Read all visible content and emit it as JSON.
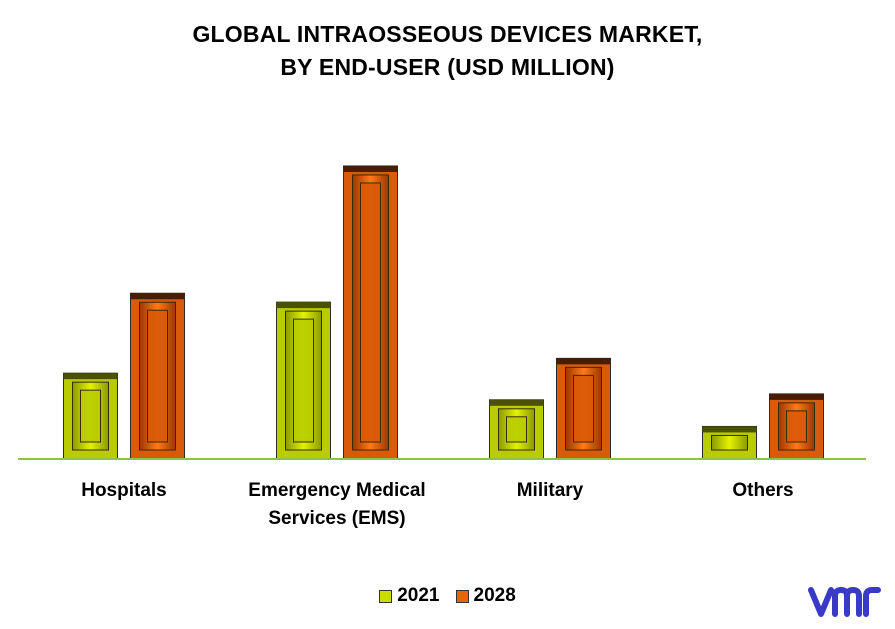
{
  "chart_data": {
    "type": "bar",
    "title": [
      "GLOBAL INTRAOSSEOUS DEVICES MARKET,",
      "BY END-USER (USD MILLION)"
    ],
    "categories": [
      [
        "Hospitals"
      ],
      [
        "Emergency Medical",
        "Services (EMS)"
      ],
      [
        "Military"
      ],
      [
        "Others"
      ]
    ],
    "series": [
      {
        "name": "2021",
        "values": [
          29,
          53,
          20,
          11
        ],
        "color": "#c8dc00"
      },
      {
        "name": "2028",
        "values": [
          56,
          99,
          34,
          22
        ],
        "color": "#e8640a"
      }
    ],
    "ylim": [
      0,
      100
    ],
    "grid": false,
    "legend_position": "bottom-center",
    "baseline_color": "#8bc34a"
  },
  "legend": [
    {
      "label": "2021",
      "color": "#c8dc00"
    },
    {
      "label": "2028",
      "color": "#e8640a"
    }
  ],
  "logo": {
    "icon": "vmr-logo-icon",
    "color": "#3a3ac8"
  }
}
